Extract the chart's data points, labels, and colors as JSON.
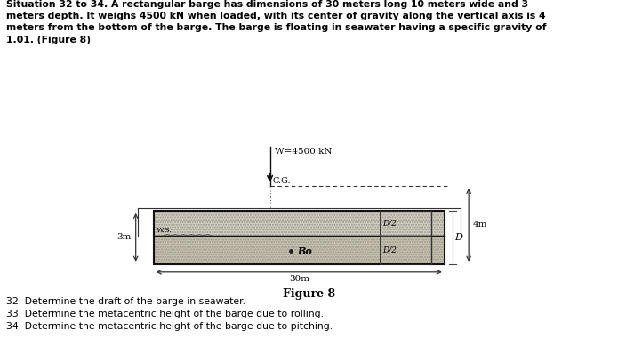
{
  "title_text": "Situation 32 to 34. A rectangular barge has dimensions of 30 meters long 10 meters wide and 3\nmeters depth. It weighs 4500 kN when loaded, with its center of gravity along the vertical axis is 4\nmeters from the bottom of the barge. The barge is floating in seawater having a specific gravity of\n1.01. (Figure 8)",
  "figure_label": "Figure 8",
  "weight_label": "W=4500 kN",
  "cg_label": "C.G.",
  "ws_label": "W.S.",
  "bo_label": "Bo",
  "d_label": "D",
  "d2_top_label": "D/2",
  "d2_bot_label": "D/2",
  "dim_3m": "3m",
  "dim_4m": "4m",
  "dim_30m": "30m",
  "q32": "32. Determine the draft of the barge in seawater.",
  "q33": "33. Determine the metacentric height of the barge due to rolling.",
  "q34": "34. Determine the metacentric height of the barge due to pitching.",
  "bg_color": "#ffffff",
  "barge_upper_fill": "#d4cfc5",
  "barge_lower_fill": "#c8c0b0",
  "barge_outline": "#111111",
  "box_fill": "#e8e4dc"
}
